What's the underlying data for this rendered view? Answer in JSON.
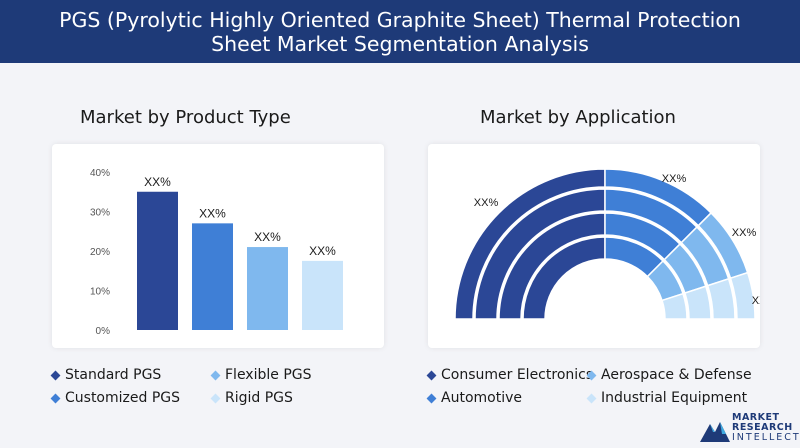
{
  "header": {
    "title": "PGS (Pyrolytic Highly Oriented Graphite Sheet) Thermal Protection Sheet Market Segmentation Analysis"
  },
  "left_panel": {
    "title": "Market by Product Type"
  },
  "right_panel": {
    "title": "Market by Application"
  },
  "colors": {
    "header_bg": "#1e3a78",
    "series": [
      "#2b4796",
      "#3f7fd6",
      "#7fb8ee",
      "#c9e4fa"
    ]
  },
  "chart_data": [
    {
      "type": "bar",
      "categories": [
        "Standard PGS",
        "Customized PGS",
        "Flexible PGS",
        "Rigid PGS"
      ],
      "values": [
        35,
        27,
        21,
        17.5
      ],
      "data_labels": [
        "XX%",
        "XX%",
        "XX%",
        "XX%"
      ],
      "y_ticks": [
        "0%",
        "10%",
        "20%",
        "30%",
        "40%"
      ],
      "ylim": [
        0,
        40
      ],
      "grid": false,
      "legend": [
        "Standard PGS",
        "Flexible PGS",
        "Customized PGS",
        "Rigid PGS"
      ]
    },
    {
      "type": "pie",
      "style": "semicircle-donut",
      "categories": [
        "Consumer Electronics",
        "Automotive",
        "Aerospace & Defense",
        "Industrial Equipment"
      ],
      "values": [
        50,
        25,
        15,
        10
      ],
      "data_labels": [
        "XX%",
        "XX%",
        "XX%",
        "XX%"
      ],
      "legend": [
        "Consumer Electronics",
        "Aerospace & Defense",
        "Automotive",
        "Industrial Equipment"
      ]
    }
  ],
  "logo": {
    "line1": "MARKET",
    "line2": "RESEARCH",
    "line3": "INTELLECT"
  }
}
